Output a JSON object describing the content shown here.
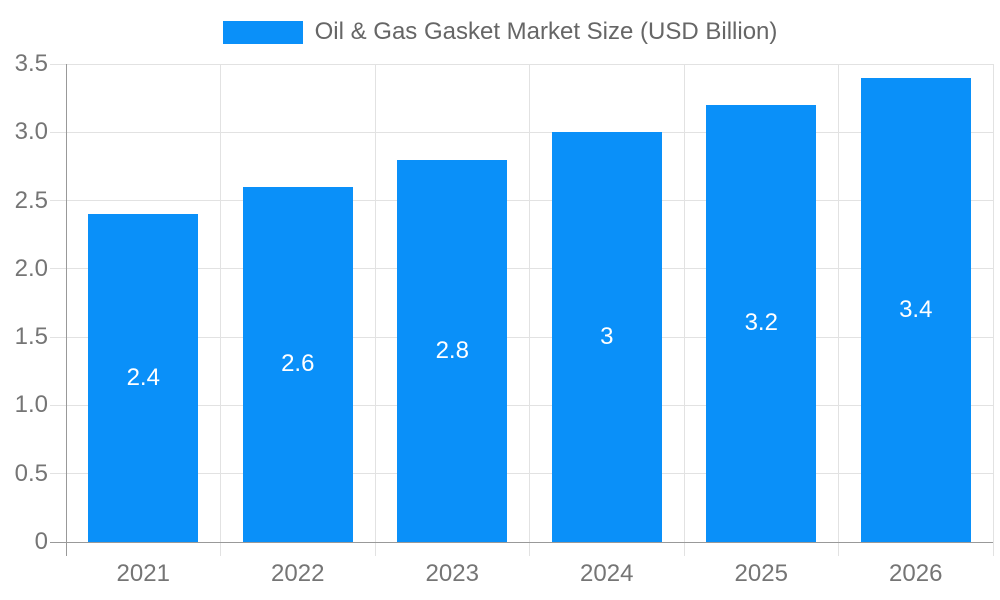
{
  "chart_data": {
    "type": "bar",
    "title": "Oil & Gas Gasket Market Size (USD Billion)",
    "legend": {
      "label": "Oil & Gas Gasket Market Size (USD Billion)",
      "position": "top"
    },
    "categories": [
      "2021",
      "2022",
      "2023",
      "2024",
      "2025",
      "2026"
    ],
    "values": [
      2.4,
      2.6,
      2.8,
      3,
      3.2,
      3.4
    ],
    "bar_labels": [
      "2.4",
      "2.6",
      "2.8",
      "3",
      "3.2",
      "3.4"
    ],
    "xlabel": "",
    "ylabel": "",
    "ylim": [
      0,
      3.5
    ],
    "ytick_labels": [
      "0",
      "0.5",
      "1.0",
      "1.5",
      "2.0",
      "2.5",
      "3.0",
      "3.5"
    ],
    "grid": true,
    "colors": {
      "bar": "#0a90f9",
      "grid": "#e2e2e2",
      "axis": "#999999",
      "tick_label": "#757575",
      "legend_text": "#666666",
      "bar_label": "#ffffff",
      "background": "#ffffff"
    }
  }
}
